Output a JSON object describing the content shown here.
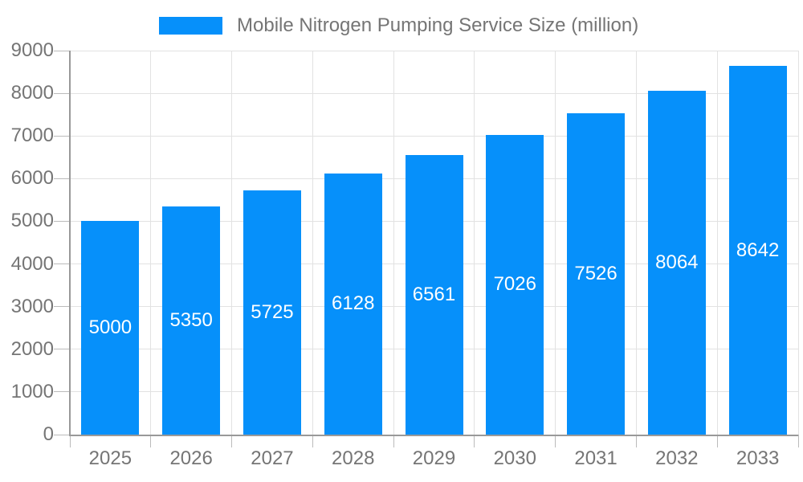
{
  "legend": {
    "label": "Mobile Nitrogen Pumping Service Size (million)"
  },
  "chart_data": {
    "type": "bar",
    "title": "",
    "categories": [
      "2025",
      "2026",
      "2027",
      "2028",
      "2029",
      "2030",
      "2031",
      "2032",
      "2033"
    ],
    "values": [
      5000,
      5350,
      5725,
      6128,
      6561,
      7026,
      7526,
      8064,
      8642
    ],
    "series": [
      {
        "name": "Mobile Nitrogen Pumping Service Size (million)",
        "values": [
          5000,
          5350,
          5725,
          6128,
          6561,
          7026,
          7526,
          8064,
          8642
        ]
      }
    ],
    "xlabel": "",
    "ylabel": "",
    "ylim": [
      0,
      9000
    ],
    "ytick_step": 1000,
    "ytick_labels": [
      "0",
      "1000",
      "2000",
      "3000",
      "4000",
      "5000",
      "6000",
      "7000",
      "8000",
      "9000"
    ],
    "grid": true,
    "gridlines": "horizontal-and-vertical-category-boundaries",
    "legend_position": "top",
    "value_labels_position": "inside-center",
    "colors": {
      "bar": "#0690FA",
      "value_label": "#FFFFFF",
      "axis_label": "#757575",
      "legend_label": "#757575",
      "grid_line": "#E2E2E2",
      "axis_line": "#999999",
      "tick": "#BBBBBB",
      "background": "#FFFFFF"
    }
  }
}
